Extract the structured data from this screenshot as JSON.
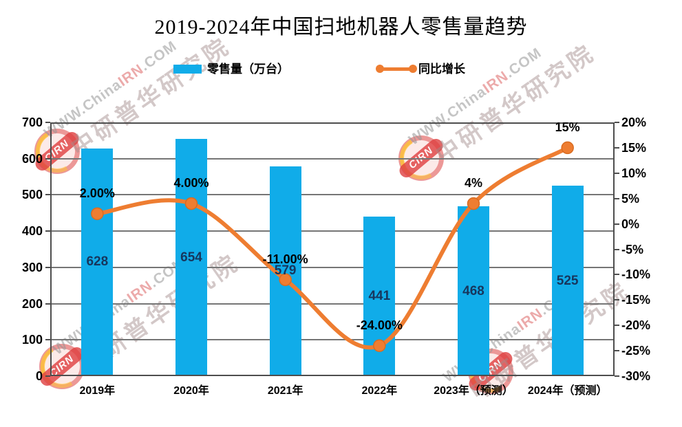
{
  "title": "2019-2024年中国扫地机器人零售量趋势",
  "legend": {
    "bar": {
      "label": "零售量（万台）"
    },
    "line": {
      "label": "同比增长"
    }
  },
  "watermark": {
    "latin_prefix": "WWW.China",
    "latin_mid": "IRN",
    "latin_suffix": ".COM",
    "cn": "中研普华研究院",
    "logo_text": "CIRN"
  },
  "colors": {
    "bar": "#10ACE9",
    "line": "#EE7D31",
    "line_marker_edge": "#D96C21",
    "grid": "#757575",
    "border": "#4D4D4D",
    "bar_label": "#17365D",
    "label": "#000000",
    "watermark_red": "#DF3E3E"
  },
  "chart_data": {
    "type": "combo bar+line, dual axis",
    "categories": [
      "2019年",
      "2020年",
      "2021年",
      "2022年",
      "2023年（预测）",
      "2024年（预测）"
    ],
    "series": [
      {
        "name": "零售量（万台）",
        "type": "bar",
        "axis": "left",
        "values": [
          628,
          654,
          579,
          441,
          468,
          525
        ],
        "labels": [
          "628",
          "654",
          "579",
          "441",
          "468",
          "525"
        ]
      },
      {
        "name": "同比增长",
        "type": "line",
        "axis": "right",
        "values": [
          2,
          4,
          -11,
          -24,
          4,
          15
        ],
        "labels": [
          "2.00%",
          "4.00%",
          "-11.00%",
          "-24.00%",
          "4%",
          "15%"
        ]
      }
    ],
    "left_axis": {
      "min": 0,
      "max": 700,
      "step": 100,
      "ticks": [
        {
          "v": 700,
          "label": "700"
        },
        {
          "v": 600,
          "label": "600"
        },
        {
          "v": 500,
          "label": "500"
        },
        {
          "v": 400,
          "label": "400"
        },
        {
          "v": 300,
          "label": "300"
        },
        {
          "v": 200,
          "label": "200"
        },
        {
          "v": 100,
          "label": "100"
        },
        {
          "v": 0,
          "label": "0"
        }
      ]
    },
    "right_axis": {
      "min": -30,
      "max": 20,
      "step": 5,
      "ticks": [
        {
          "v": 20,
          "label": "20%"
        },
        {
          "v": 15,
          "label": "15%"
        },
        {
          "v": 10,
          "label": "10%"
        },
        {
          "v": 5,
          "label": "5%"
        },
        {
          "v": 0,
          "label": "0%"
        },
        {
          "v": -5,
          "label": "-5%"
        },
        {
          "v": -10,
          "label": "-10%"
        },
        {
          "v": -15,
          "label": "-15%"
        },
        {
          "v": -20,
          "label": "-20%"
        },
        {
          "v": -25,
          "label": "-25%"
        },
        {
          "v": -30,
          "label": "-30%"
        }
      ]
    },
    "grid": true,
    "legend_position": "top"
  }
}
